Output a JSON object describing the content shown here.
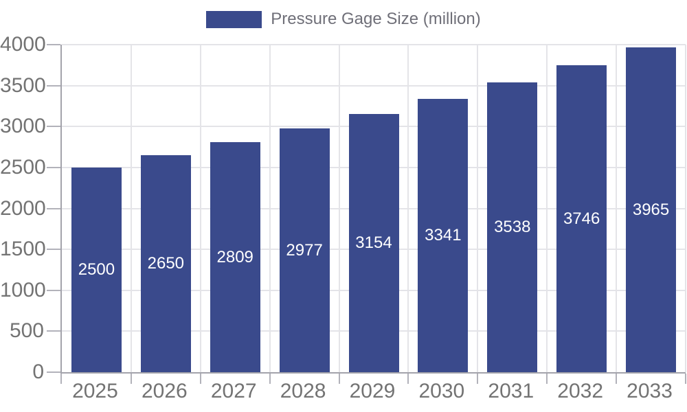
{
  "legend": {
    "label": "Pressure Gage Size (million)",
    "swatch_color": "#3A4A8C"
  },
  "chart_data": {
    "type": "bar",
    "title": "",
    "xlabel": "",
    "ylabel": "",
    "categories": [
      "2025",
      "2026",
      "2027",
      "2028",
      "2029",
      "2030",
      "2031",
      "2032",
      "2033"
    ],
    "series": [
      {
        "name": "Pressure Gage Size (million)",
        "values": [
          2500,
          2650,
          2809,
          2977,
          3154,
          3341,
          3538,
          3746,
          3965
        ]
      }
    ],
    "value_labels_shown": true,
    "ylim": [
      0,
      4000
    ],
    "yticks": [
      0,
      500,
      1000,
      1500,
      2000,
      2500,
      3000,
      3500,
      4000
    ],
    "grid": "on",
    "legend_position": "top-center",
    "bar_color": "#3A4A8C",
    "value_label_color": "#ffffff",
    "grid_color": "#e4e4e8",
    "axis_color": "#a3a3ab",
    "tick_label_color": "#737373"
  }
}
